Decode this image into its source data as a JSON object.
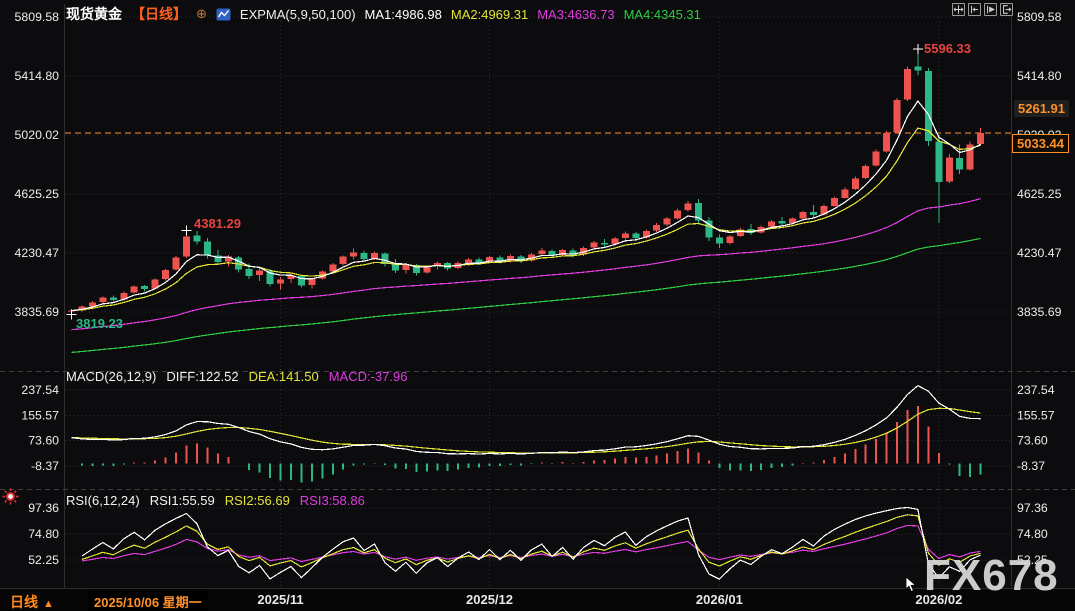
{
  "brand": {
    "watermark": "FX678"
  },
  "header": {
    "symbol": "现货黄金",
    "period_tag": "【日线】",
    "plus_icon": "⊕",
    "indicator_label": "EXPMA(5,9,50,100)",
    "ma1": "MA1:4986.98",
    "ma2": "MA2:4969.31",
    "ma3": "MA3:4636.73",
    "ma4": "MA4:4345.31"
  },
  "toolbar": {
    "icons": [
      "pan-icon",
      "page-back-icon",
      "page-forward-icon",
      "jump-latest-icon"
    ]
  },
  "price_badges": {
    "upper": "5261.91",
    "current": "5033.44"
  },
  "annotations": {
    "period_high": "5596.33",
    "october_high": "4381.29",
    "start_low": "3819.23"
  },
  "macd_panel": {
    "title": "MACD(26,12,9)",
    "diff": "DIFF:122.52",
    "dea": "DEA:141.50",
    "macd": "MACD:-37.96"
  },
  "rsi_panel": {
    "title": "RSI(6,12,24)",
    "rsi1": "RSI1:55.59",
    "rsi2": "RSI2:56.69",
    "rsi3": "RSI3:58.86"
  },
  "bottom_bar": {
    "period_label": "日线",
    "arrow": "▲",
    "first_date": "2025/10/06 星期一"
  },
  "chart_data": {
    "type": "candlestick",
    "title": "现货黄金 日线 (Spot Gold Daily)",
    "x_axis": {
      "first_label": "2025/10/06 星期一",
      "month_ticks": [
        {
          "label": "2025/11",
          "index": 20
        },
        {
          "label": "2025/12",
          "index": 40
        },
        {
          "label": "2026/01",
          "index": 62
        },
        {
          "label": "2026/02",
          "index": 83
        }
      ]
    },
    "main": {
      "y_ticks": [
        5809.58,
        5414.8,
        5020.02,
        4625.25,
        4230.47,
        3835.69
      ],
      "current_price": 5033.44,
      "reference_price": 5261.91,
      "expma_periods": [
        5,
        9,
        50,
        100
      ],
      "expma_seeds": [
        null,
        null,
        3712,
        3560
      ],
      "markers": [
        {
          "index": 0,
          "value": 3819.23
        },
        {
          "index": 11,
          "value": 4381.29
        },
        {
          "index": 81,
          "value": 5596.33
        }
      ],
      "candles": [
        [
          3838,
          3856,
          3819.23,
          3845
        ],
        [
          3846,
          3878,
          3840,
          3871
        ],
        [
          3872,
          3908,
          3864,
          3900
        ],
        [
          3902,
          3940,
          3894,
          3932
        ],
        [
          3933,
          3945,
          3906,
          3916
        ],
        [
          3918,
          3972,
          3912,
          3964
        ],
        [
          3966,
          4014,
          3959,
          4006
        ],
        [
          4008,
          4018,
          3972,
          3989
        ],
        [
          3992,
          4060,
          3986,
          4052
        ],
        [
          4055,
          4124,
          4048,
          4116
        ],
        [
          4119,
          4212,
          4112,
          4202
        ],
        [
          4206,
          4381.29,
          4196,
          4342
        ],
        [
          4346,
          4376,
          4288,
          4308
        ],
        [
          4308,
          4330,
          4194,
          4214
        ],
        [
          4215,
          4250,
          4150,
          4170
        ],
        [
          4173,
          4216,
          4140,
          4206
        ],
        [
          4201,
          4210,
          4100,
          4120
        ],
        [
          4123,
          4160,
          4056,
          4078
        ],
        [
          4083,
          4130,
          4044,
          4114
        ],
        [
          4110,
          4124,
          4006,
          4024
        ],
        [
          4026,
          4070,
          3984,
          4054
        ],
        [
          4056,
          4092,
          4030,
          4080
        ],
        [
          4078,
          4084,
          4000,
          4014
        ],
        [
          4016,
          4064,
          3994,
          4056
        ],
        [
          4059,
          4114,
          4052,
          4106
        ],
        [
          4108,
          4162,
          4100,
          4154
        ],
        [
          4156,
          4214,
          4148,
          4206
        ],
        [
          4208,
          4260,
          4188,
          4234
        ],
        [
          4232,
          4248,
          4174,
          4192
        ],
        [
          4194,
          4240,
          4184,
          4230
        ],
        [
          4228,
          4234,
          4140,
          4157
        ],
        [
          4160,
          4190,
          4098,
          4114
        ],
        [
          4117,
          4164,
          4094,
          4152
        ],
        [
          4150,
          4158,
          4080,
          4097
        ],
        [
          4100,
          4148,
          4092,
          4140
        ],
        [
          4142,
          4174,
          4120,
          4164
        ],
        [
          4162,
          4170,
          4114,
          4128
        ],
        [
          4130,
          4172,
          4122,
          4162
        ],
        [
          4160,
          4198,
          4144,
          4188
        ],
        [
          4186,
          4200,
          4150,
          4164
        ],
        [
          4167,
          4212,
          4160,
          4204
        ],
        [
          4202,
          4214,
          4160,
          4174
        ],
        [
          4176,
          4220,
          4168,
          4210
        ],
        [
          4208,
          4218,
          4164,
          4180
        ],
        [
          4182,
          4230,
          4174,
          4220
        ],
        [
          4222,
          4264,
          4214,
          4247
        ],
        [
          4244,
          4254,
          4198,
          4214
        ],
        [
          4216,
          4258,
          4208,
          4250
        ],
        [
          4248,
          4260,
          4200,
          4217
        ],
        [
          4220,
          4274,
          4212,
          4264
        ],
        [
          4266,
          4312,
          4257,
          4300
        ],
        [
          4298,
          4324,
          4270,
          4287
        ],
        [
          4290,
          4338,
          4282,
          4328
        ],
        [
          4330,
          4374,
          4320,
          4362
        ],
        [
          4360,
          4370,
          4312,
          4332
        ],
        [
          4334,
          4388,
          4328,
          4377
        ],
        [
          4380,
          4430,
          4372,
          4417
        ],
        [
          4420,
          4472,
          4410,
          4460
        ],
        [
          4462,
          4527,
          4454,
          4514
        ],
        [
          4517,
          4580,
          4507,
          4562
        ],
        [
          4564,
          4592,
          4422,
          4447
        ],
        [
          4447,
          4470,
          4312,
          4334
        ],
        [
          4334,
          4354,
          4264,
          4294
        ],
        [
          4297,
          4350,
          4287,
          4342
        ],
        [
          4345,
          4398,
          4336,
          4388
        ],
        [
          4390,
          4424,
          4350,
          4366
        ],
        [
          4368,
          4414,
          4360,
          4406
        ],
        [
          4408,
          4450,
          4400,
          4442
        ],
        [
          4444,
          4470,
          4412,
          4428
        ],
        [
          4430,
          4468,
          4422,
          4460
        ],
        [
          4462,
          4512,
          4455,
          4504
        ],
        [
          4506,
          4550,
          4468,
          4486
        ],
        [
          4488,
          4554,
          4482,
          4544
        ],
        [
          4546,
          4608,
          4540,
          4598
        ],
        [
          4600,
          4668,
          4594,
          4656
        ],
        [
          4658,
          4742,
          4652,
          4730
        ],
        [
          4732,
          4824,
          4726,
          4812
        ],
        [
          4814,
          4922,
          4808,
          4908
        ],
        [
          4910,
          5048,
          4904,
          5034
        ],
        [
          5038,
          5268,
          5030,
          5254
        ],
        [
          5258,
          5478,
          5248,
          5462
        ],
        [
          5478,
          5596.33,
          5420,
          5452
        ],
        [
          5448,
          5470,
          4948,
          4978
        ],
        [
          4975,
          5022,
          4432,
          4704
        ],
        [
          4708,
          4892,
          4700,
          4870
        ],
        [
          4866,
          4958,
          4760,
          4788
        ],
        [
          4790,
          4976,
          4782,
          4958
        ],
        [
          4960,
          5068,
          4945,
          5033.44
        ]
      ]
    },
    "macd": {
      "params": [
        26,
        12,
        9
      ],
      "y_ticks": [
        237.54,
        155.57,
        73.6,
        -8.37
      ],
      "seed_offset": 90,
      "diff": 122.52,
      "dea": 141.5,
      "macd": -37.96
    },
    "rsi": {
      "params": [
        6,
        12,
        24
      ],
      "y_ticks": [
        97.36,
        74.8,
        52.25
      ],
      "rsi1": 55.59,
      "rsi2": 56.69,
      "rsi3": 58.86
    },
    "colors": {
      "up": "#ef5350",
      "down": "#2bb886",
      "ma1": "#ffffff",
      "ma2": "#e3e336",
      "ma3": "#e03ce0",
      "ma4": "#2ecc40",
      "accent": "#ff9029",
      "grid": "#303038",
      "axis_text": "#ededed"
    }
  }
}
